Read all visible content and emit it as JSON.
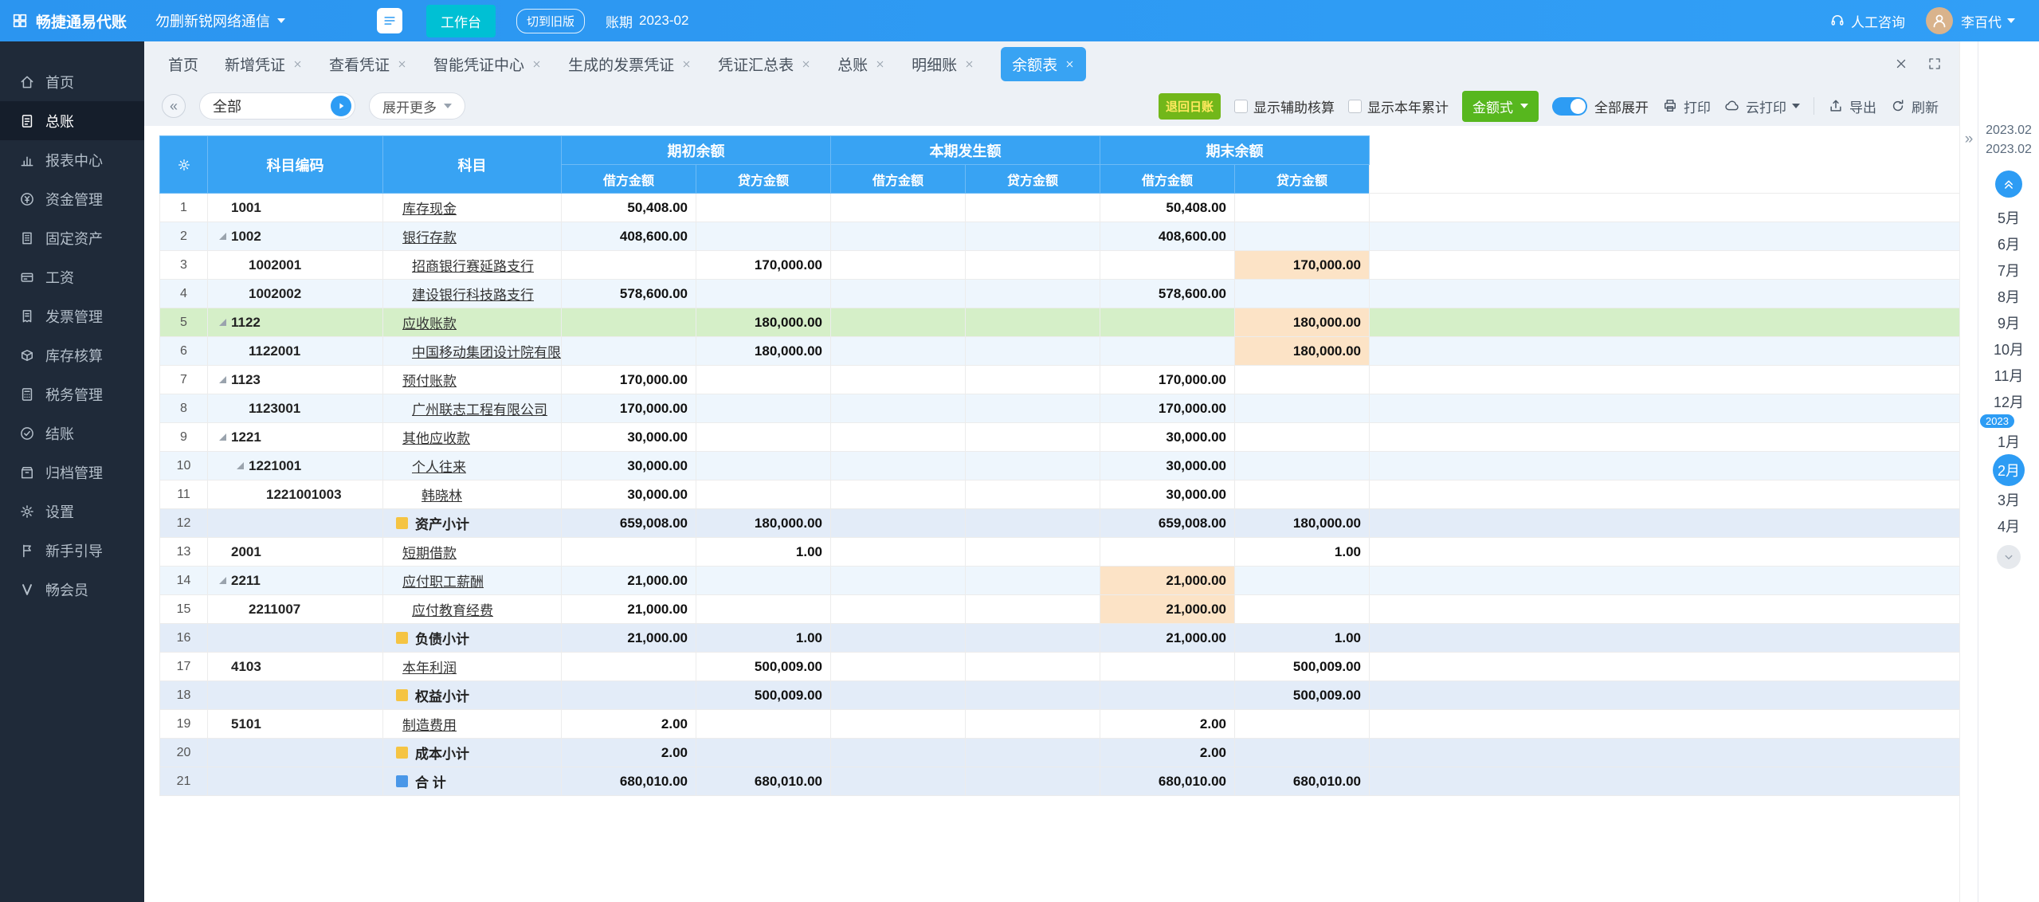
{
  "topbar": {
    "logo": "畅捷通易代账",
    "company_select": "勿删新锐网络通信",
    "workbench_btn": "工作台",
    "switch_old_btn": "切到旧版",
    "period_label": "账期",
    "period_value": "2023-02",
    "support": "人工咨询",
    "user": "李百代"
  },
  "sidebar": {
    "items": [
      {
        "id": "home",
        "icon": "home",
        "label": "首页",
        "active": false
      },
      {
        "id": "general-ledger",
        "icon": "ledger",
        "label": "总账",
        "active": true
      },
      {
        "id": "report-center",
        "icon": "report",
        "label": "报表中心",
        "active": false
      },
      {
        "id": "fund-management",
        "icon": "fund",
        "label": "资金管理",
        "active": false
      },
      {
        "id": "fixed-assets",
        "icon": "asset",
        "label": "固定资产",
        "active": false
      },
      {
        "id": "salary",
        "icon": "salary",
        "label": "工资",
        "active": false
      },
      {
        "id": "invoice-management",
        "icon": "invoice",
        "label": "发票管理",
        "active": false
      },
      {
        "id": "inventory-accounting",
        "icon": "inventory",
        "label": "库存核算",
        "active": false
      },
      {
        "id": "tax-management",
        "icon": "tax",
        "label": "税务管理",
        "active": false
      },
      {
        "id": "closing",
        "icon": "closing",
        "label": "结账",
        "active": false
      },
      {
        "id": "archive-management",
        "icon": "archive",
        "label": "归档管理",
        "active": false
      },
      {
        "id": "settings",
        "icon": "settings",
        "label": "设置",
        "active": false
      },
      {
        "id": "beginner-guide",
        "icon": "guide",
        "label": "新手引导",
        "active": false
      },
      {
        "id": "member",
        "icon": "member",
        "label": "畅会员",
        "active": false
      }
    ]
  },
  "tabs": [
    {
      "id": "home",
      "label": "首页",
      "closable": false,
      "active": false
    },
    {
      "id": "new-voucher",
      "label": "新增凭证",
      "closable": true,
      "active": false
    },
    {
      "id": "view-voucher",
      "label": "查看凭证",
      "closable": true,
      "active": false
    },
    {
      "id": "smart-voucher-center",
      "label": "智能凭证中心",
      "closable": true,
      "active": false
    },
    {
      "id": "generated-invoice-voucher",
      "label": "生成的发票凭证",
      "closable": true,
      "active": false
    },
    {
      "id": "voucher-summary",
      "label": "凭证汇总表",
      "closable": true,
      "active": false
    },
    {
      "id": "general-ledger",
      "label": "总账",
      "closable": true,
      "active": false
    },
    {
      "id": "detail-ledger",
      "label": "明细账",
      "closable": true,
      "active": false
    },
    {
      "id": "balance-sheet",
      "label": "余额表",
      "closable": true,
      "active": true
    }
  ],
  "toolbar": {
    "filter_value": "全部",
    "expand_more": "展开更多",
    "back_day": "退回日账",
    "checkbox1": "显示辅助核算",
    "checkbox2": "显示本年累计",
    "amount_mode": "金额式",
    "expand_all": "全部展开",
    "print": "打印",
    "cloud_print": "云打印",
    "export": "导出",
    "refresh": "刷新"
  },
  "table": {
    "col_code": "科目编码",
    "col_subject": "科目",
    "group_opening": "期初余额",
    "group_current": "本期发生额",
    "group_closing": "期末余额",
    "col_debit": "借方金额",
    "col_credit": "贷方金额",
    "rows": [
      {
        "num": 1,
        "code": "1001",
        "level": 1,
        "expandable": false,
        "name": "库存现金",
        "type": "normal",
        "selected": false,
        "amounts": [
          "50,408.00",
          "",
          "",
          "",
          "50,408.00",
          ""
        ],
        "orange": []
      },
      {
        "num": 2,
        "code": "1002",
        "level": 1,
        "expandable": true,
        "name": "银行存款",
        "type": "normal",
        "selected": false,
        "amounts": [
          "408,600.00",
          "",
          "",
          "",
          "408,600.00",
          ""
        ],
        "orange": []
      },
      {
        "num": 3,
        "code": "1002001",
        "level": 2,
        "expandable": false,
        "name": "招商银行赛延路支行",
        "type": "normal",
        "selected": false,
        "amounts": [
          "",
          "170,000.00",
          "",
          "",
          "",
          "170,000.00"
        ],
        "orange": [
          5
        ]
      },
      {
        "num": 4,
        "code": "1002002",
        "level": 2,
        "expandable": false,
        "name": "建设银行科技路支行",
        "type": "normal",
        "selected": false,
        "amounts": [
          "578,600.00",
          "",
          "",
          "",
          "578,600.00",
          ""
        ],
        "orange": []
      },
      {
        "num": 5,
        "code": "1122",
        "level": 1,
        "expandable": true,
        "name": "应收账款",
        "type": "normal",
        "selected": true,
        "amounts": [
          "",
          "180,000.00",
          "",
          "",
          "",
          "180,000.00"
        ],
        "orange": [
          5
        ]
      },
      {
        "num": 6,
        "code": "1122001",
        "level": 2,
        "expandable": false,
        "name": "中国移动集团设计院有限公司浙",
        "type": "normal",
        "selected": false,
        "amounts": [
          "",
          "180,000.00",
          "",
          "",
          "",
          "180,000.00"
        ],
        "orange": [
          5
        ]
      },
      {
        "num": 7,
        "code": "1123",
        "level": 1,
        "expandable": true,
        "name": "预付账款",
        "type": "normal",
        "selected": false,
        "amounts": [
          "170,000.00",
          "",
          "",
          "",
          "170,000.00",
          ""
        ],
        "orange": []
      },
      {
        "num": 8,
        "code": "1123001",
        "level": 2,
        "expandable": false,
        "name": "广州联志工程有限公司",
        "type": "normal",
        "selected": false,
        "amounts": [
          "170,000.00",
          "",
          "",
          "",
          "170,000.00",
          ""
        ],
        "orange": []
      },
      {
        "num": 9,
        "code": "1221",
        "level": 1,
        "expandable": true,
        "name": "其他应收款",
        "type": "normal",
        "selected": false,
        "amounts": [
          "30,000.00",
          "",
          "",
          "",
          "30,000.00",
          ""
        ],
        "orange": []
      },
      {
        "num": 10,
        "code": "1221001",
        "level": 2,
        "expandable": true,
        "name": "个人往来",
        "type": "normal",
        "selected": false,
        "amounts": [
          "30,000.00",
          "",
          "",
          "",
          "30,000.00",
          ""
        ],
        "orange": []
      },
      {
        "num": 11,
        "code": "1221001003",
        "level": 3,
        "expandable": false,
        "name": "韩晓林",
        "type": "normal",
        "selected": false,
        "amounts": [
          "30,000.00",
          "",
          "",
          "",
          "30,000.00",
          ""
        ],
        "orange": []
      },
      {
        "num": 12,
        "code": "",
        "level": 1,
        "expandable": false,
        "name": "资产小计",
        "type": "subtotal",
        "selected": false,
        "amounts": [
          "659,008.00",
          "180,000.00",
          "",
          "",
          "659,008.00",
          "180,000.00"
        ],
        "orange": []
      },
      {
        "num": 13,
        "code": "2001",
        "level": 1,
        "expandable": false,
        "name": "短期借款",
        "type": "normal",
        "selected": false,
        "amounts": [
          "",
          "1.00",
          "",
          "",
          "",
          "1.00"
        ],
        "orange": []
      },
      {
        "num": 14,
        "code": "2211",
        "level": 1,
        "expandable": true,
        "name": "应付职工薪酬",
        "type": "normal",
        "selected": false,
        "amounts": [
          "21,000.00",
          "",
          "",
          "",
          "21,000.00",
          ""
        ],
        "orange": [
          4
        ]
      },
      {
        "num": 15,
        "code": "2211007",
        "level": 2,
        "expandable": false,
        "name": "应付教育经费",
        "type": "normal",
        "selected": false,
        "amounts": [
          "21,000.00",
          "",
          "",
          "",
          "21,000.00",
          ""
        ],
        "orange": [
          4
        ]
      },
      {
        "num": 16,
        "code": "",
        "level": 1,
        "expandable": false,
        "name": "负债小计",
        "type": "subtotal",
        "selected": false,
        "amounts": [
          "21,000.00",
          "1.00",
          "",
          "",
          "21,000.00",
          "1.00"
        ],
        "orange": []
      },
      {
        "num": 17,
        "code": "4103",
        "level": 1,
        "expandable": false,
        "name": "本年利润",
        "type": "normal",
        "selected": false,
        "amounts": [
          "",
          "500,009.00",
          "",
          "",
          "",
          "500,009.00"
        ],
        "orange": []
      },
      {
        "num": 18,
        "code": "",
        "level": 1,
        "expandable": false,
        "name": "权益小计",
        "type": "subtotal",
        "selected": false,
        "amounts": [
          "",
          "500,009.00",
          "",
          "",
          "",
          "500,009.00"
        ],
        "orange": []
      },
      {
        "num": 19,
        "code": "5101",
        "level": 1,
        "expandable": false,
        "name": "制造费用",
        "type": "normal",
        "selected": false,
        "amounts": [
          "2.00",
          "",
          "",
          "",
          "2.00",
          ""
        ],
        "orange": []
      },
      {
        "num": 20,
        "code": "",
        "level": 1,
        "expandable": false,
        "name": "成本小计",
        "type": "subtotal",
        "selected": false,
        "amounts": [
          "2.00",
          "",
          "",
          "",
          "2.00",
          ""
        ],
        "orange": []
      },
      {
        "num": 21,
        "code": "",
        "level": 1,
        "expandable": false,
        "name": "合  计",
        "type": "total",
        "selected": false,
        "amounts": [
          "680,010.00",
          "680,010.00",
          "",
          "",
          "680,010.00",
          "680,010.00"
        ],
        "orange": []
      }
    ]
  },
  "period_panel": {
    "period_start": "2023.02",
    "period_end": "2023.02",
    "months": [
      "5月",
      "6月",
      "7月",
      "8月",
      "9月",
      "10月",
      "11月",
      "12月",
      "1月",
      "2月",
      "3月",
      "4月"
    ],
    "selected_index": 9,
    "year_badge": "2023",
    "year_badge_index": 8
  }
}
